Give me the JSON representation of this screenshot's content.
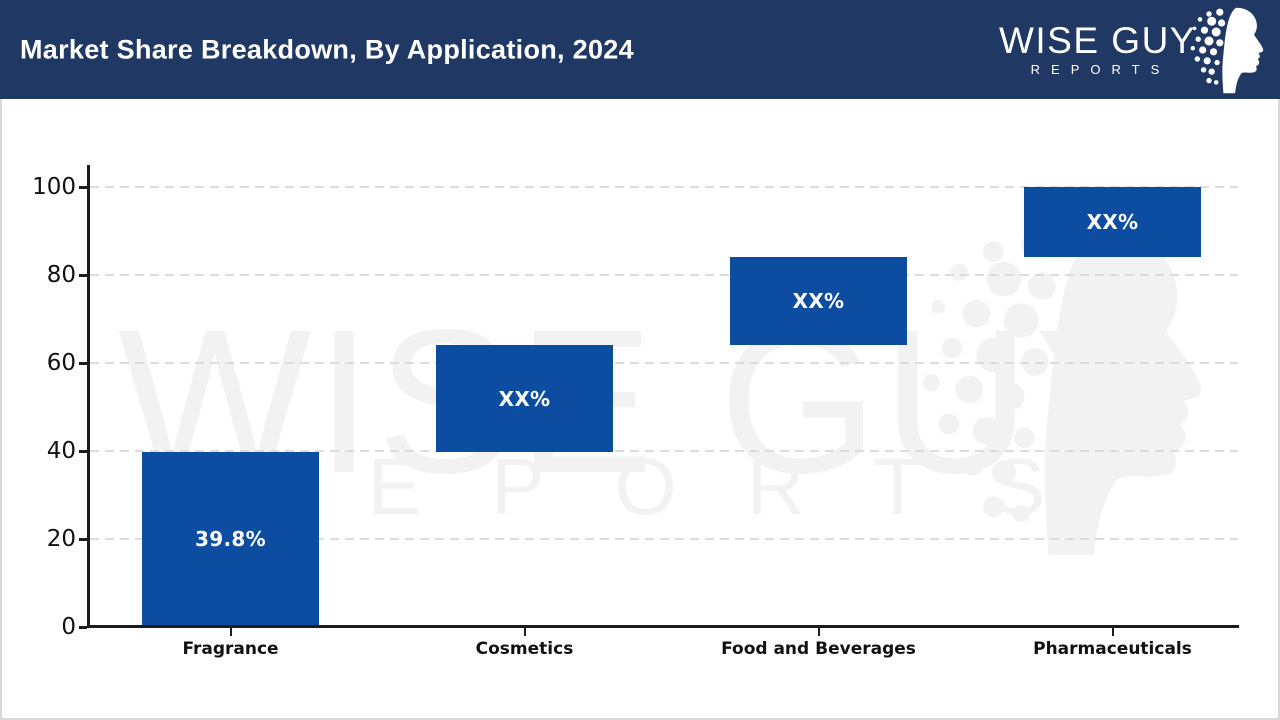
{
  "header": {
    "title": "Market Share Breakdown, By Application, 2024",
    "logo": {
      "line1": "WISE GUY",
      "line2": "REPORTS"
    }
  },
  "watermark": {
    "line1": "WISE GUY",
    "line2": "REPORTS"
  },
  "colors": {
    "header_bg": "#203864",
    "bar_fill": "#0c4da2",
    "bar_label_text": "#ffffff",
    "gridline": "#dcdcdc",
    "axis": "#1c1c1c",
    "tick_label": "#111111",
    "watermark": "#f2f2f2"
  },
  "chart_data": {
    "type": "bar",
    "subtype": "waterfall-breakdown",
    "title": "Market Share Breakdown, By Application, 2024",
    "categories": [
      "Fragrance",
      "Cosmetics",
      "Food and Beverages",
      "Pharmaceuticals"
    ],
    "segments": [
      {
        "category": "Fragrance",
        "start": 0,
        "end": 39.8,
        "label": "39.8%"
      },
      {
        "category": "Cosmetics",
        "start": 39.8,
        "end": 64,
        "label": "XX%"
      },
      {
        "category": "Food and Beverages",
        "start": 64,
        "end": 84,
        "label": "XX%"
      },
      {
        "category": "Pharmaceuticals",
        "start": 84,
        "end": 100,
        "label": "XX%"
      }
    ],
    "ylim": [
      0,
      100
    ],
    "yticks": [
      0,
      20,
      40,
      60,
      80,
      100
    ],
    "xlabel": "",
    "ylabel": "",
    "grid": "horizontal-dashed",
    "legend": "none"
  }
}
